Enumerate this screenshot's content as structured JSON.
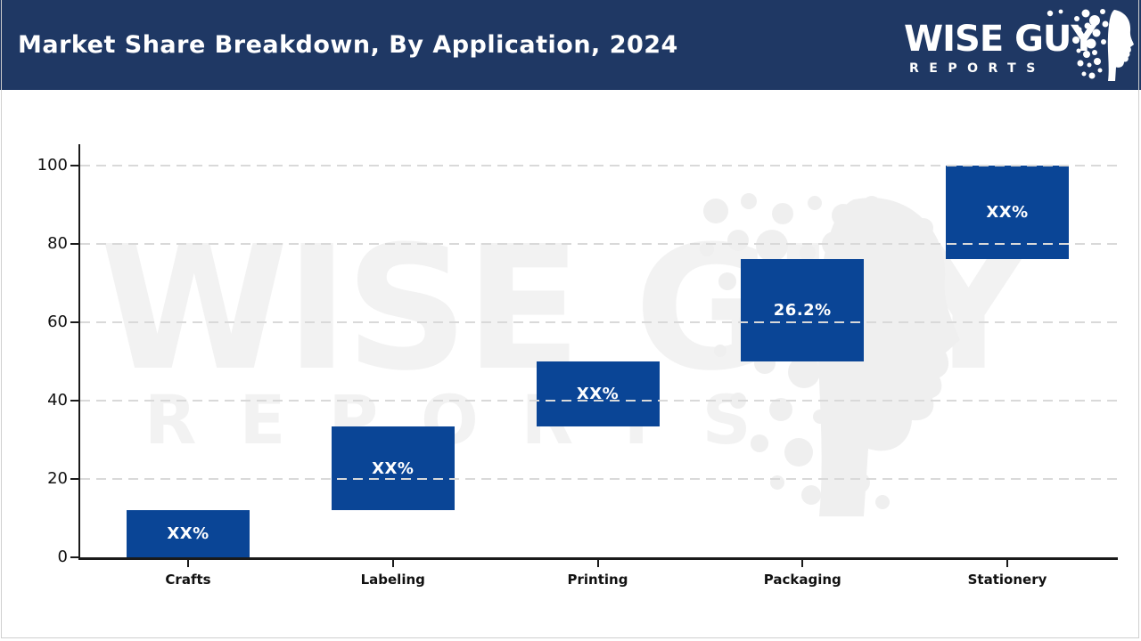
{
  "header": {
    "title": "Market Share Breakdown, By Application, 2024",
    "logo": {
      "line1": "WISE GUY",
      "line2": "REPORTS"
    }
  },
  "watermark": {
    "line1": "WISE GUY",
    "line2": "REPORTS"
  },
  "colors": {
    "header_bg": "#1f3864",
    "bar": "#0a4596",
    "grid": "#d9d9d9",
    "watermark": "#f2f2f2",
    "axis": "#1a1a1a"
  },
  "chart_data": {
    "type": "bar",
    "subtype": "waterfall",
    "title": "Market Share Breakdown, By Application, 2024",
    "categories": [
      "Crafts",
      "Labeling",
      "Printing",
      "Packaging",
      "Stationery"
    ],
    "segments": [
      {
        "category": "Crafts",
        "start": 0,
        "end": 12,
        "label": "XX%"
      },
      {
        "category": "Labeling",
        "start": 12,
        "end": 33.3,
        "label": "XX%"
      },
      {
        "category": "Printing",
        "start": 33.3,
        "end": 50,
        "label": "XX%"
      },
      {
        "category": "Packaging",
        "start": 50,
        "end": 76.2,
        "label": "26.2%"
      },
      {
        "category": "Stationery",
        "start": 76.2,
        "end": 100,
        "label": "XX%"
      }
    ],
    "xlabel": "",
    "ylabel": "",
    "ylim": [
      0,
      100
    ],
    "yticks": [
      0,
      20,
      40,
      60,
      80,
      100
    ],
    "grid": "horizontal-dashed",
    "legend": "none"
  }
}
